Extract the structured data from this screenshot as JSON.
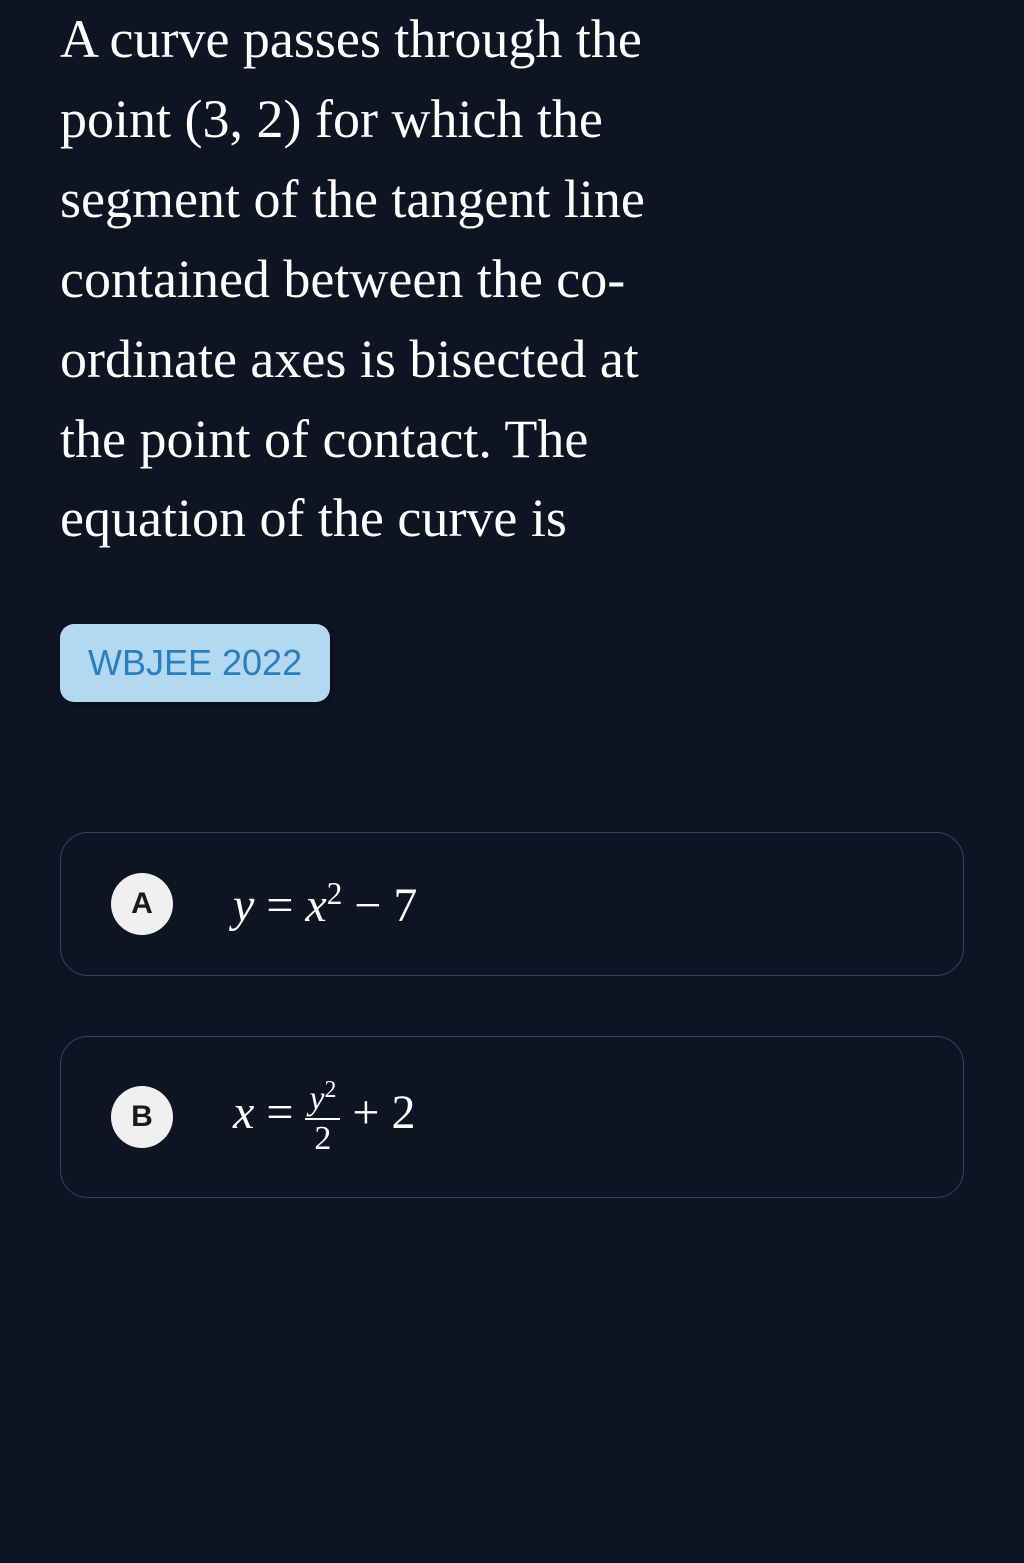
{
  "question": {
    "line1": "A curve passes through the",
    "line2_pre": "point ",
    "point": "(3, 2)",
    "line2_post": " for which the",
    "line3": "segment of the tangent line",
    "line4": "contained between the co-",
    "line5": "ordinate axes is bisected at",
    "line6": "the point of contact. The",
    "line7": "equation of the curve is"
  },
  "tag": "WBJEE 2022",
  "options": {
    "A": {
      "letter": "A",
      "formula_text": "y = x² − 7"
    },
    "B": {
      "letter": "B",
      "formula_text": "x = y²/2 + 2"
    }
  },
  "colors": {
    "background": "#0f1424",
    "text": "#ffffff",
    "tag_bg": "#b3d9f2",
    "tag_text": "#2a7fbf",
    "option_border": "#3a4158",
    "letter_bg": "#f0f0f0",
    "letter_text": "#1a1a1a"
  },
  "typography": {
    "question_fontsize": 54,
    "tag_fontsize": 36,
    "formula_fontsize": 48,
    "letter_fontsize": 30
  }
}
